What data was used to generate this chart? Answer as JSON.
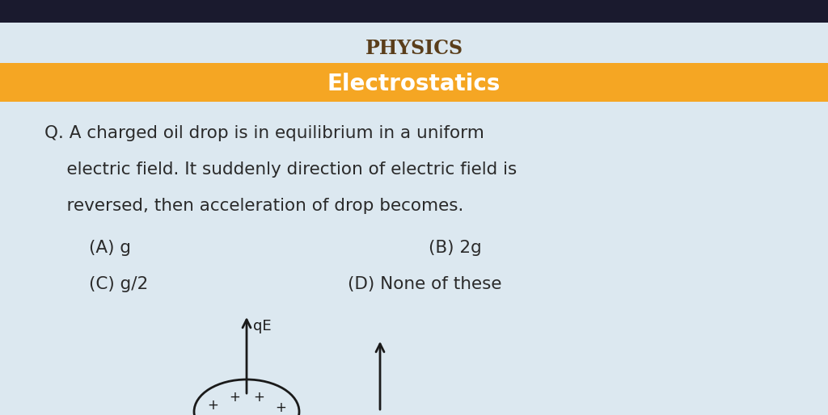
{
  "bg_color": "#dce8f0",
  "top_strip_color": "#1a1a2e",
  "header_bar_color": "#f5a623",
  "header_text": "Electrostatics",
  "header_text_color": "#ffffff",
  "physics_text": "PHYSICS",
  "physics_text_color": "#5a3e1b",
  "question_line1": "Q. A charged oil drop is in equilibrium in a uniform",
  "question_line2": "    electric field. It suddenly direction of electric field is",
  "question_line3": "    reversed, then acceleration of drop becomes.",
  "option_A": "(A) g",
  "option_B": "(B) 2g",
  "option_C": "(C) g/2",
  "option_D": "(D) None of these",
  "text_color": "#2a2a2a",
  "arrow_color": "#1a1a1a",
  "qE_label": "qE",
  "figsize": [
    10.24,
    5.14
  ],
  "dpi": 100
}
